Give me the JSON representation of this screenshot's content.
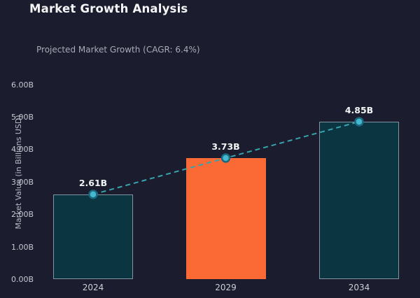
{
  "page": {
    "background_color": "#1b1c2e"
  },
  "header": {
    "title": "Market Growth Analysis",
    "subtitle": "Projected Market Growth (CAGR: 6.4%)"
  },
  "chart_data": {
    "type": "bar",
    "title": "Market Growth Analysis",
    "subtitle": "Projected Market Growth (CAGR: 6.4%)",
    "categories": [
      "2024",
      "2029",
      "2034"
    ],
    "values": [
      2.61,
      3.73,
      4.85
    ],
    "value_labels": [
      "2.61B",
      "3.73B",
      "4.85B"
    ],
    "xlabel": "",
    "ylabel": "Market Value (in Billions USD)",
    "ylim": [
      0,
      6
    ],
    "ytick_values": [
      0,
      1,
      2,
      3,
      4,
      5,
      6
    ],
    "ytick_labels": [
      "0.00B",
      "1.00B",
      "2.00B",
      "3.00B",
      "4.00B",
      "5.00B",
      "6.00B"
    ],
    "grid": false,
    "legend": "none",
    "cagr_note": "CAGR: 6.4%",
    "overlay_trend_line": {
      "style": "dashed",
      "x": [
        "2024",
        "2029",
        "2034"
      ],
      "y": [
        2.61,
        3.73,
        4.85
      ]
    },
    "colors": {
      "background": "#1b1c2e",
      "bars": [
        "#0a3541",
        "#fb6a35",
        "#0a3541"
      ],
      "bar_borders": [
        "#7f95a3",
        "#fb6a35",
        "#7f95a3"
      ],
      "trend_line": "#36a3ad",
      "marker_fill": "#45b8d0",
      "marker_stroke": "#1a6880",
      "title_text": "#f4f5f7",
      "subtitle_text": "#a9abb6",
      "tick_text": "#c6c7d1",
      "value_label_text": "#f2f4f6"
    }
  }
}
